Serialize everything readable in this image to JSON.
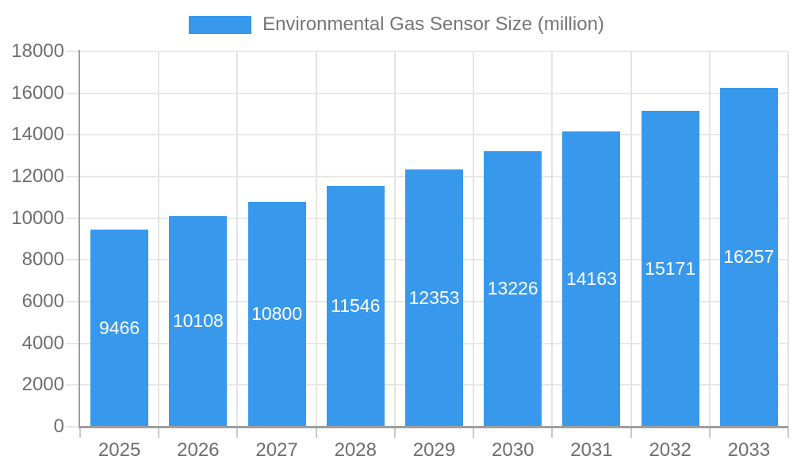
{
  "legend": {
    "label": "Environmental Gas Sensor Size (million)"
  },
  "chart_data": {
    "type": "bar",
    "title": "Environmental Gas Sensor Size (million)",
    "categories": [
      "2025",
      "2026",
      "2027",
      "2028",
      "2029",
      "2030",
      "2031",
      "2032",
      "2033"
    ],
    "values": [
      9466,
      10108,
      10800,
      11546,
      12353,
      13226,
      14163,
      15171,
      16257
    ],
    "xlabel": "",
    "ylabel": "",
    "ylim": [
      0,
      18000
    ],
    "yticks": [
      0,
      2000,
      4000,
      6000,
      8000,
      10000,
      12000,
      14000,
      16000,
      18000
    ],
    "grid": true,
    "legend_position": "top-center",
    "bar_label_position": "inside-center",
    "colors": {
      "bar": "#3899EC",
      "axis_line": "#9E9E9E",
      "gridline": "#E8E8E8",
      "tick": "#C9C9C9",
      "axis_text": "#6E6E6E",
      "legend_text": "#757575",
      "bar_label_text": "#FFFFFF"
    }
  }
}
